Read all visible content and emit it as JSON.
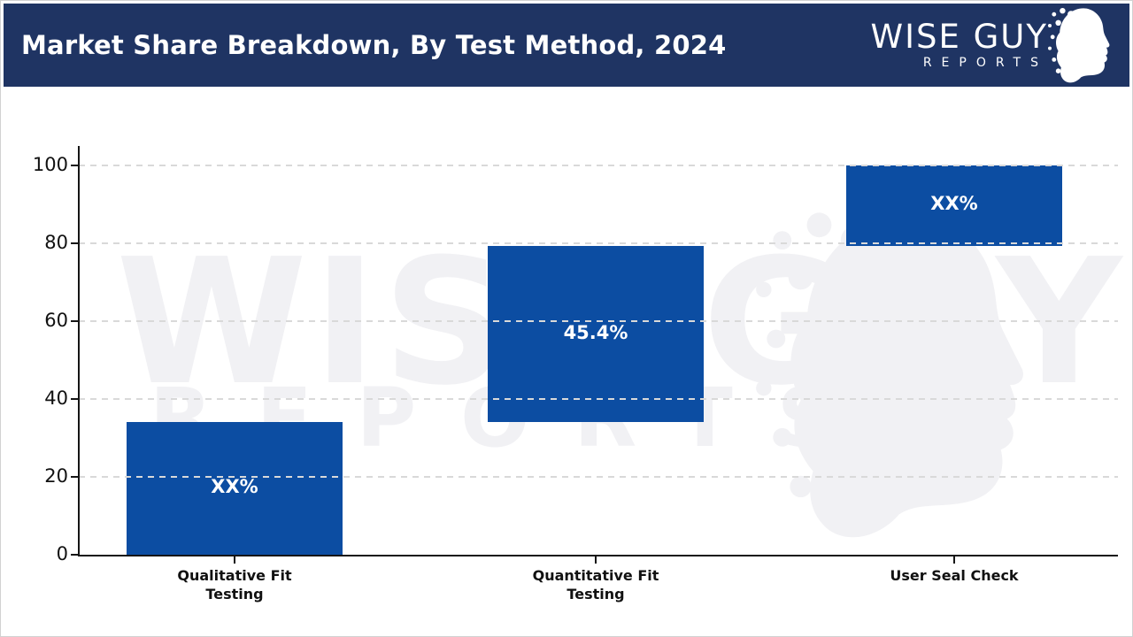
{
  "header": {
    "title": "Market Share Breakdown, By Test Method, 2024",
    "brand_name": "WISE GUY",
    "brand_subtitle": "REPORTS"
  },
  "watermark": {
    "line1": "WISE GUY",
    "line2": "REPORTS"
  },
  "chart_data": {
    "type": "bar",
    "subtype": "floating-waterfall",
    "title": "Market Share Breakdown, By Test Method, 2024",
    "categories": [
      [
        "Qualitative Fit",
        "Testing"
      ],
      [
        "Quantitative Fit",
        "Testing"
      ],
      [
        "User Seal Check"
      ]
    ],
    "bars": [
      {
        "label": "XX%",
        "start": 0,
        "end": 34
      },
      {
        "label": "45.4%",
        "start": 34,
        "end": 79.4
      },
      {
        "label": "XX%",
        "start": 79.4,
        "end": 100
      }
    ],
    "yticks": [
      0,
      20,
      40,
      60,
      80,
      100
    ],
    "ylim": [
      0,
      105
    ],
    "xlabel": "",
    "ylabel": "",
    "legend": "none",
    "grid": {
      "axis": "y",
      "style": "dashed",
      "above_bars": true
    }
  },
  "colors": {
    "header_navy": "#1f3463",
    "bar_blue": "#0c4da2",
    "grid_gray": "#d9d9d9",
    "watermark_gray": "#f1f1f4",
    "axis_black": "#151515",
    "value_label_white": "#ffffff"
  },
  "icons": {
    "brand_face": "dotted-head-profile"
  }
}
